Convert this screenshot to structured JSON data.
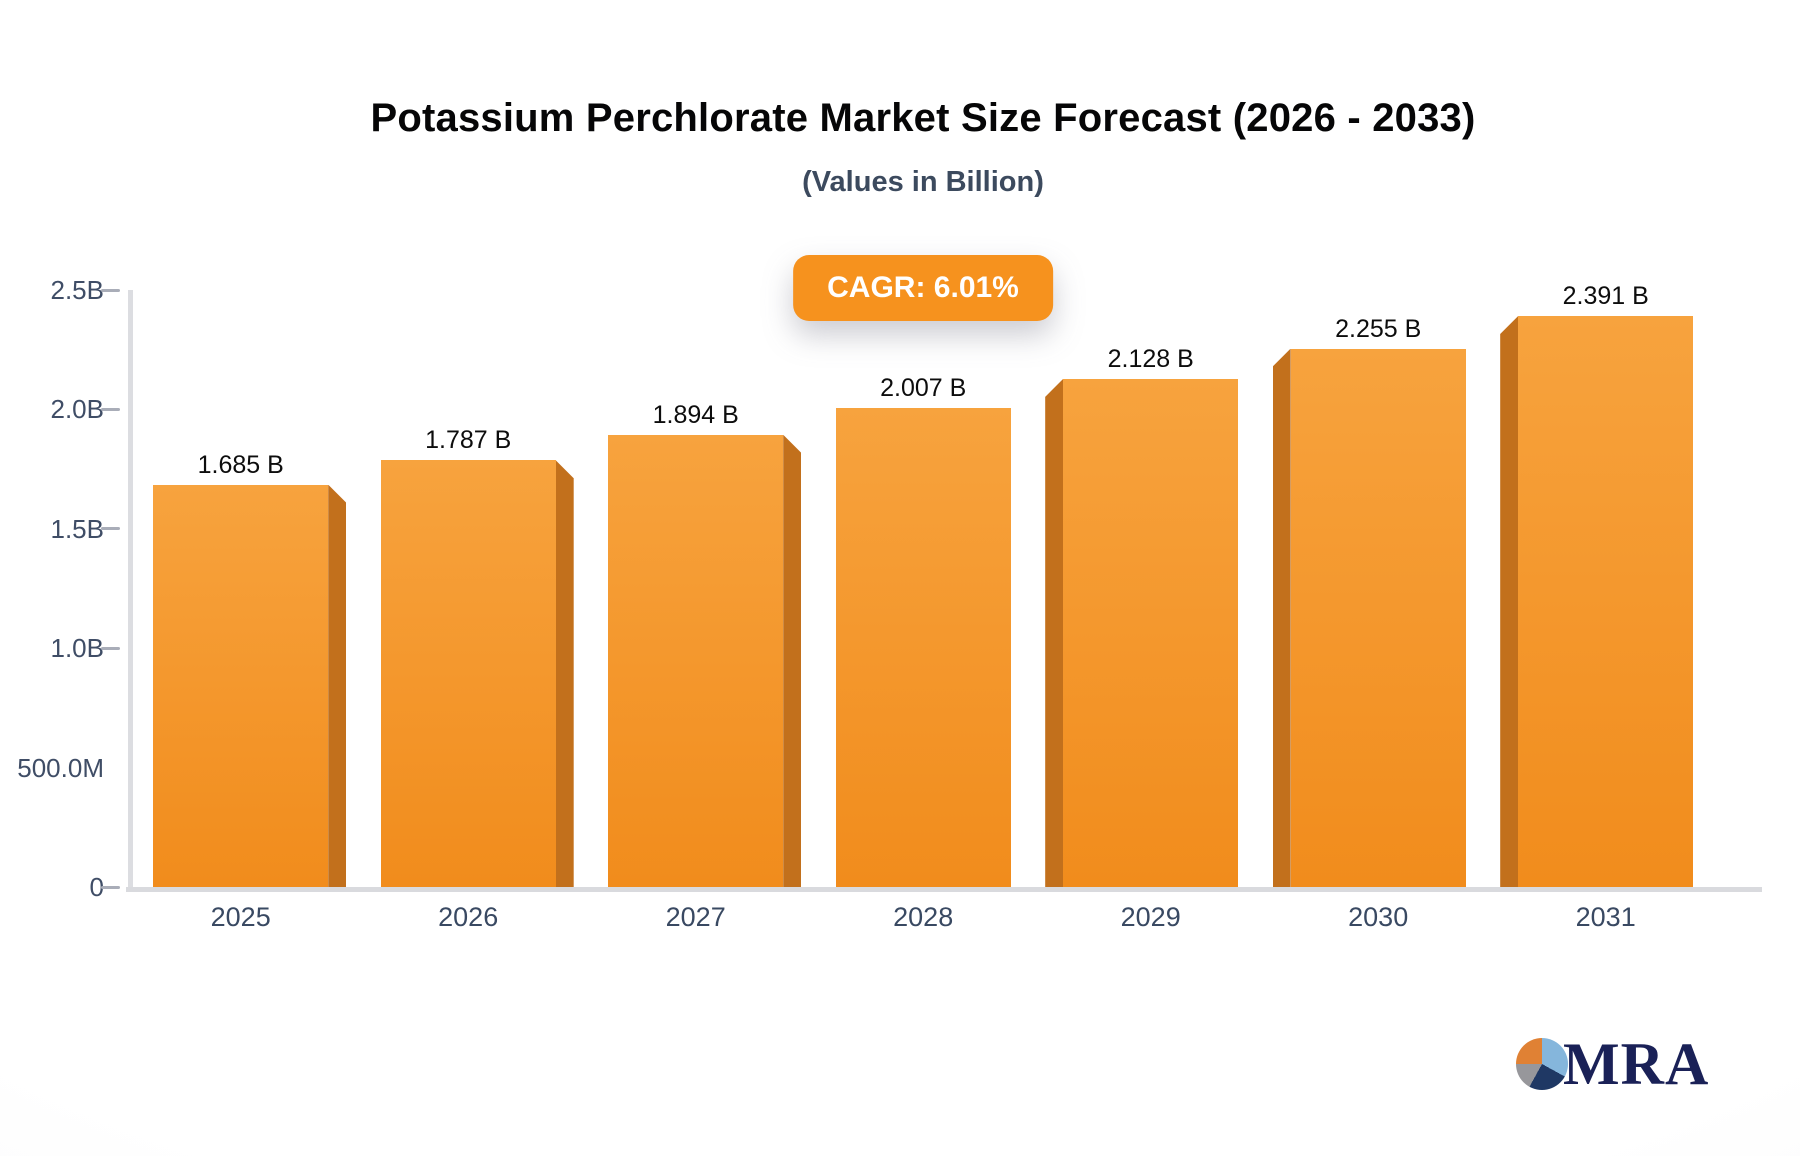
{
  "chart": {
    "title": "Potassium Perchlorate Market Size Forecast (2026 - 2033)",
    "subtitle": "(Values in Billion)",
    "badge_label": "CAGR: 6.01%"
  },
  "chart_data": {
    "type": "bar",
    "title": "Potassium Perchlorate Market Size Forecast (2026 - 2033)",
    "subtitle": "(Values in Billion)",
    "annotation": "CAGR: 6.01%",
    "categories": [
      "2025",
      "2026",
      "2027",
      "2028",
      "2029",
      "2030",
      "2031"
    ],
    "values": [
      1.685,
      1.787,
      1.894,
      2.007,
      2.128,
      2.255,
      2.391
    ],
    "value_labels": [
      "1.685 B",
      "1.787 B",
      "1.894 B",
      "2.007 B",
      "2.128 B",
      "2.255 B",
      "2.391 B"
    ],
    "ylim": [
      0,
      2.5
    ],
    "y_ticks": [
      {
        "label": "0",
        "value": 0,
        "dash": true
      },
      {
        "label": "500.0M",
        "value": 0.5,
        "dash": false
      },
      {
        "label": "1.0B",
        "value": 1.0,
        "dash": true
      },
      {
        "label": "1.5B",
        "value": 1.5,
        "dash": true
      },
      {
        "label": "2.0B",
        "value": 2.0,
        "dash": true
      },
      {
        "label": "2.5B",
        "value": 2.5,
        "dash": true
      }
    ],
    "grid": false,
    "legend": "none",
    "colors": {
      "bar_face": "#F6941F",
      "bar_face_top": "#F7A33E",
      "bar_face_bottom": "#F18C1C",
      "bar_side_3d": "#C2701C",
      "badge_background": "#F6921E",
      "axis_line": "#DCDDE1",
      "value_label_text": "#0D0D0D",
      "axis_label_text": "#3F4D66"
    }
  },
  "logo": {
    "text": "MRA",
    "icon": "pie-icon"
  }
}
